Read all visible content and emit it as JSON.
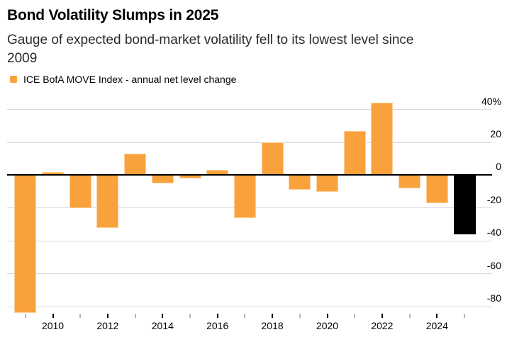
{
  "header": {
    "title": "Bond Volatility Slumps in 2025",
    "subtitle_lines": [
      "Gauge of expected bond-market volatility fell to its lowest level since",
      "2009"
    ]
  },
  "legend": {
    "label": "ICE BofA MOVE Index - annual net level change",
    "swatch_color": "#F9A13A"
  },
  "chart_data": {
    "type": "bar",
    "title": "Bond Volatility Slumps in 2025",
    "subtitle": "Gauge of expected bond-market volatility fell to its lowest level since 2009",
    "legend_entry": "ICE BofA MOVE Index - annual net level change",
    "categories": [
      2009,
      2010,
      2011,
      2012,
      2013,
      2014,
      2015,
      2016,
      2017,
      2018,
      2019,
      2020,
      2021,
      2022,
      2023,
      2024,
      2025
    ],
    "values": [
      -84,
      2,
      -20,
      -32,
      13,
      -5,
      -2,
      3,
      -26,
      20,
      -9,
      -10,
      27,
      44,
      -8,
      -17,
      -36
    ],
    "highlight_year": 2025,
    "xlabel": "",
    "ylabel": "annual net level change (%)",
    "x_tick_labeled_years": [
      "2010",
      "2012",
      "2014",
      "2016",
      "2018",
      "2020",
      "2022",
      "2024"
    ],
    "y_ticks": [
      40,
      20,
      0,
      -20,
      -40,
      -60,
      -80
    ],
    "y_tick_labels": [
      "40%",
      "20",
      "0",
      "-20",
      "-40",
      "-60",
      "-80"
    ],
    "ylim": [
      -85,
      46
    ],
    "grid": "horizontal",
    "legend_position": "top-left",
    "colors": {
      "bar": "#F9A13A",
      "bar_edge": "#FCD19C",
      "highlight": "#000000",
      "gridline": "#D9D9D9",
      "zero_axis": "#000000",
      "tick_major": "#000000",
      "tick_minor": "#B8B8B8"
    }
  }
}
